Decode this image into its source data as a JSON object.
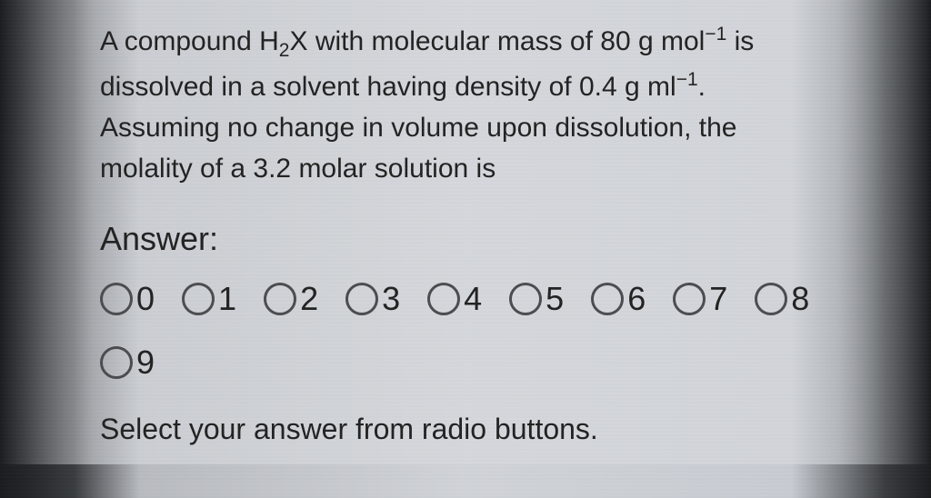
{
  "question": {
    "line1_pre": "A compound H",
    "line1_sub": "2",
    "line1_mid": "X with molecular mass of 80 g mol",
    "line1_sup": "−1",
    "line1_post": " is",
    "line2_pre": "dissolved in a solvent having density of 0.4 g ml",
    "line2_sup": "−1",
    "line2_post": ".",
    "line3": "Assuming no change in volume upon dissolution, the",
    "line4": "molality of a 3.2 molar solution is"
  },
  "answer_label": "Answer:",
  "options": [
    "0",
    "1",
    "2",
    "3",
    "4",
    "5",
    "6",
    "7",
    "8",
    "9"
  ],
  "instruction": "Select your answer from radio buttons.",
  "colors": {
    "text": "#1a1a1a",
    "radio_border": "#4a4c4f",
    "paper_light": "#d0d3d8",
    "edge_dark": "#1a1c1e"
  }
}
